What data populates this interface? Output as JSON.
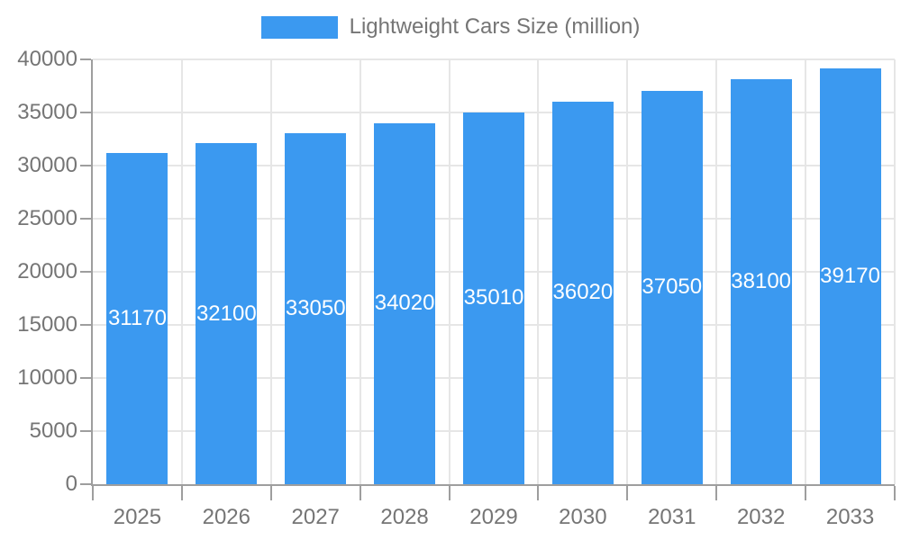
{
  "chart_data": {
    "type": "bar",
    "title": "",
    "legend": "Lightweight Cars Size (million)",
    "legend_position": "top-center",
    "categories": [
      "2025",
      "2026",
      "2027",
      "2028",
      "2029",
      "2030",
      "2031",
      "2032",
      "2033"
    ],
    "values": [
      31170,
      32100,
      33050,
      34020,
      35010,
      36020,
      37050,
      38100,
      39170
    ],
    "bar_value_labels": [
      "31170",
      "32100",
      "33050",
      "34020",
      "35010",
      "36020",
      "37050",
      "38100",
      "39170"
    ],
    "bar_labels_inside": true,
    "xlabel": "",
    "ylabel": "",
    "ylim": [
      0,
      40000
    ],
    "ytick_step": 5000,
    "ytick_labels": [
      "0",
      "5000",
      "10000",
      "15000",
      "20000",
      "25000",
      "30000",
      "35000",
      "40000"
    ],
    "grid": true,
    "colors": {
      "bar": "#3B99F0",
      "bar_label": "#ffffff",
      "axis_line": "#9e9e9e",
      "grid_line": "#e6e6e6",
      "tick_text": "#757575",
      "legend_text": "#757575",
      "background": "#ffffff"
    }
  }
}
